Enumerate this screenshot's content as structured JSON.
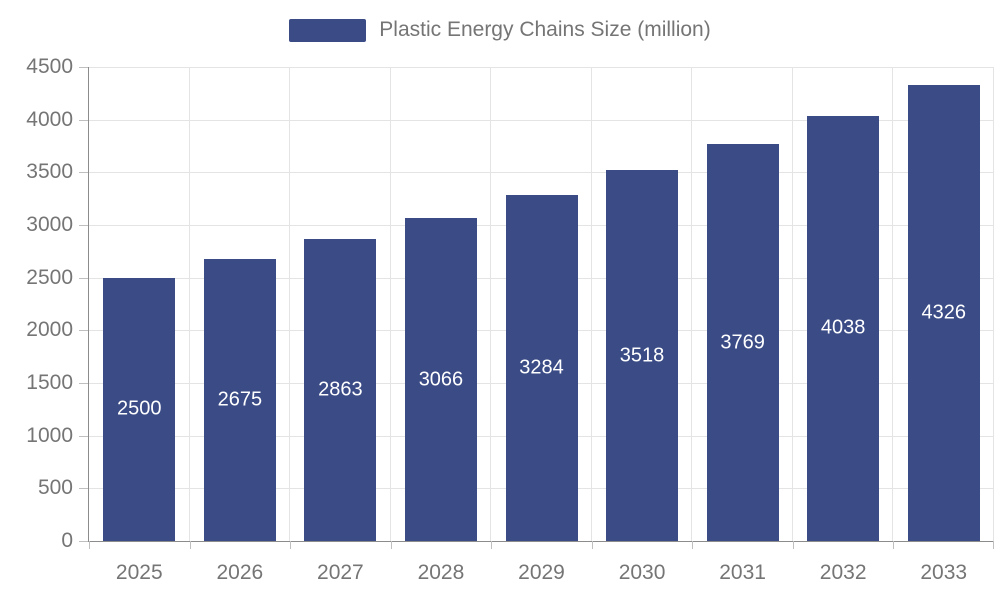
{
  "chart_data": {
    "type": "bar",
    "title": "",
    "legend": {
      "label": "Plastic Energy Chains Size (million)",
      "position": "top-center"
    },
    "categories": [
      "2025",
      "2026",
      "2027",
      "2028",
      "2029",
      "2030",
      "2031",
      "2032",
      "2033"
    ],
    "series": [
      {
        "name": "Plastic Energy Chains Size (million)",
        "values": [
          2500,
          2675,
          2863,
          3066,
          3284,
          3518,
          3769,
          4038,
          4326
        ]
      }
    ],
    "xlabel": "",
    "ylabel": "",
    "ylim": [
      0,
      4500
    ],
    "yticks": [
      0,
      500,
      1000,
      1500,
      2000,
      2500,
      3000,
      3500,
      4000,
      4500
    ],
    "grid": true,
    "value_labels_inside_bars": true,
    "colors": {
      "bar": "#3A4B86",
      "bar_label": "#FFFFFF",
      "axis_line": "#8C8C8C",
      "gridline": "#E4E4E4",
      "tick": "#BFBFBF",
      "axis_text": "#757575"
    }
  }
}
